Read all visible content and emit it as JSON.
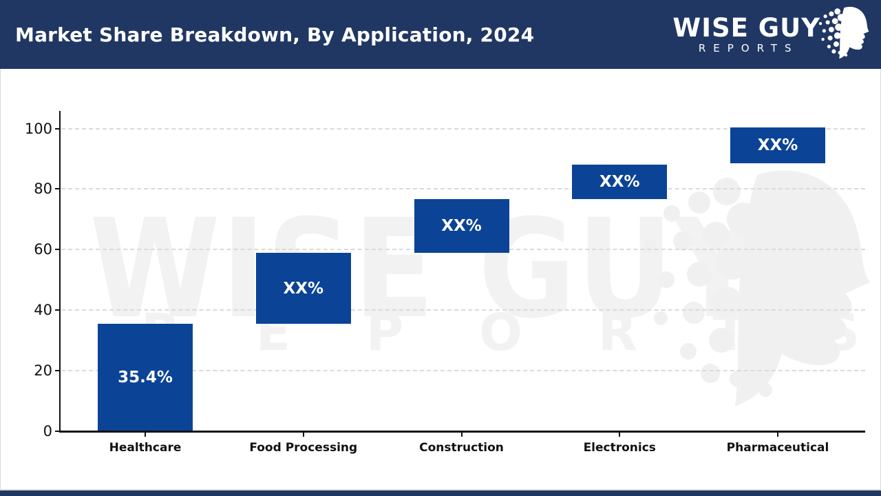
{
  "header": {
    "title": "Market Share Breakdown, By Application, 2024",
    "logo_line1": "WISE GUY",
    "logo_line2": "REPORTS",
    "bg_color": "#203764"
  },
  "watermark": {
    "line1": "WISE GUY",
    "line2": "R E P O R T S"
  },
  "chart_data": {
    "type": "bar",
    "variant": "floating-waterfall",
    "title": "Market Share Breakdown, By Application, 2024",
    "categories": [
      "Healthcare",
      "Food Processing",
      "Construction",
      "Electronics",
      "Pharmaceutical"
    ],
    "segments": [
      {
        "category": "Healthcare",
        "label": "35.4%",
        "start": 0,
        "end": 35.4
      },
      {
        "category": "Food Processing",
        "label": "XX%",
        "start": 35.4,
        "end": 58.9
      },
      {
        "category": "Construction",
        "label": "XX%",
        "start": 58.9,
        "end": 76.6
      },
      {
        "category": "Electronics",
        "label": "XX%",
        "start": 76.6,
        "end": 88.0
      },
      {
        "category": "Pharmaceutical",
        "label": "XX%",
        "start": 88.5,
        "end": 100.3
      }
    ],
    "y_ticks": [
      0,
      20,
      40,
      60,
      80,
      100
    ],
    "ylim": [
      0,
      106
    ],
    "xlabel": "",
    "ylabel": "",
    "legend": "none",
    "grid": "horizontal-dashed",
    "bar_color": "#0b4396",
    "grid_color": "#dadada",
    "axis_color": "#111111",
    "label_color_inside": "#ffffff"
  }
}
